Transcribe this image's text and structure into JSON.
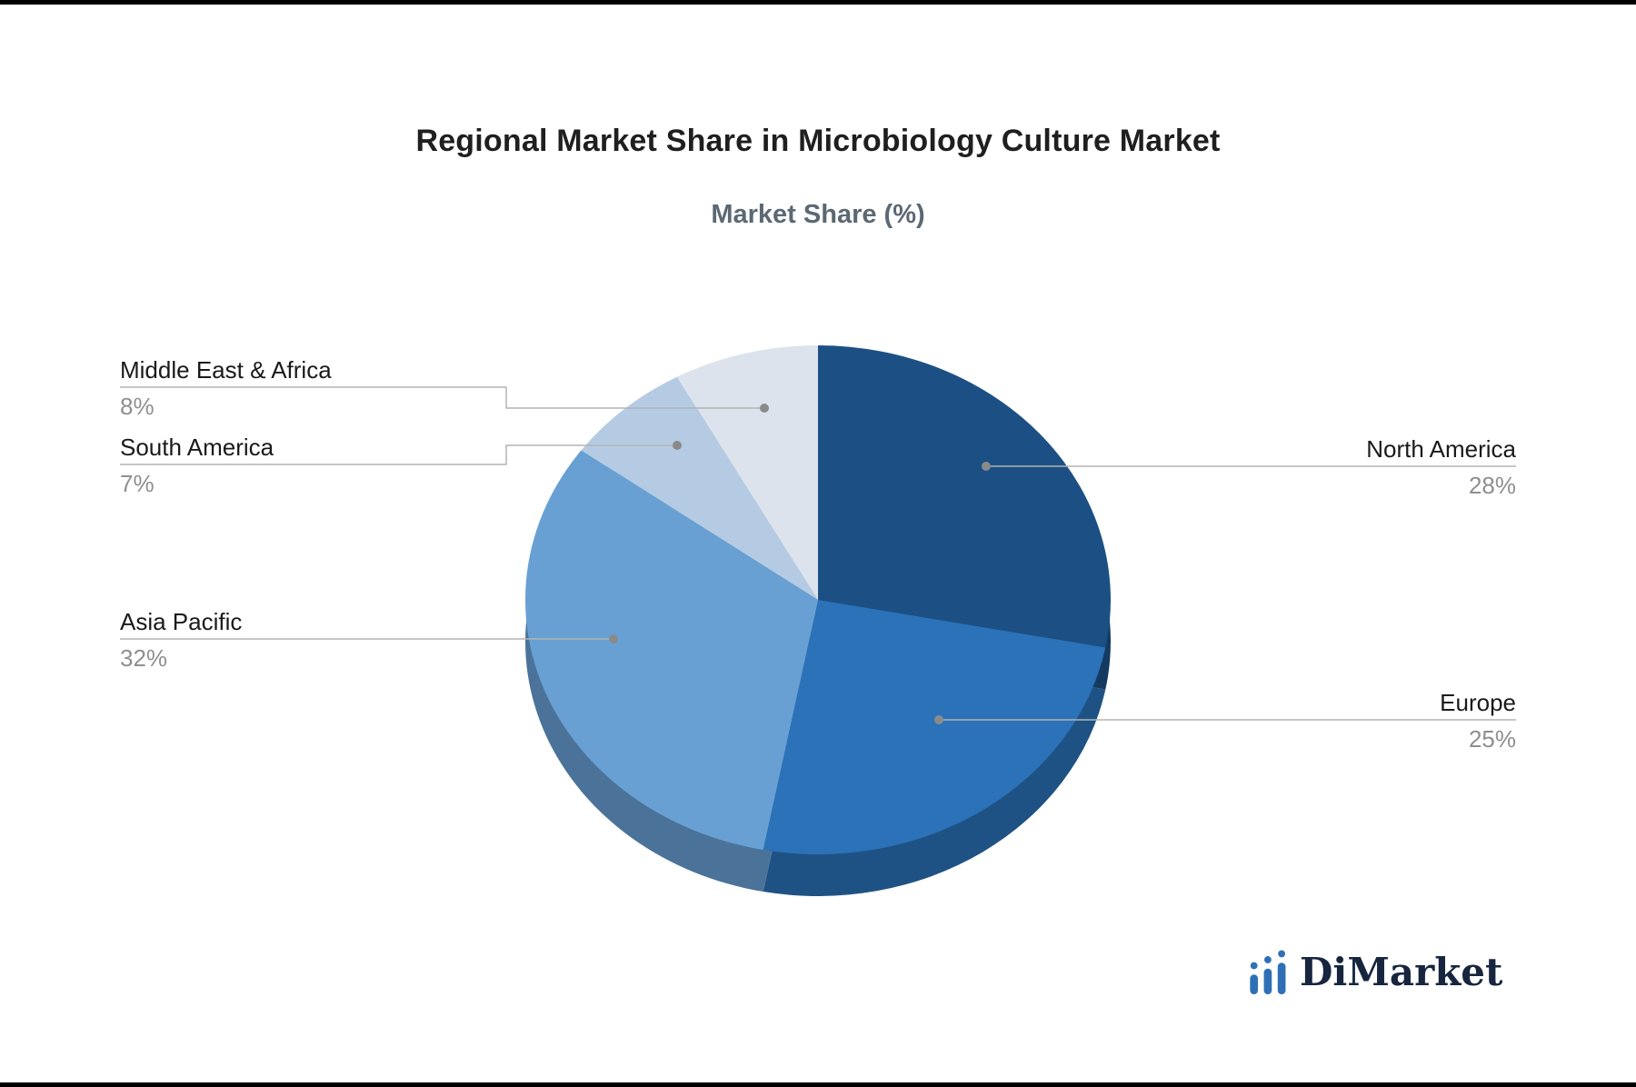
{
  "chart_data": {
    "type": "pie",
    "title": "Regional Market Share in Microbiology Culture Market",
    "subtitle": "Market Share (%)",
    "unit": "%",
    "legend_position": "none",
    "label_style": "callout-lines",
    "slices": [
      {
        "label": "North America",
        "value": 28,
        "pct": "28%",
        "color": "#1C5085"
      },
      {
        "label": "Europe",
        "value": 25,
        "pct": "25%",
        "color": "#2B72B8"
      },
      {
        "label": "Asia Pacific",
        "value": 32,
        "pct": "32%",
        "color": "#68A0D4"
      },
      {
        "label": "South America",
        "value": 7,
        "pct": "7%",
        "color": "#B4CBE3"
      },
      {
        "label": "Middle East & Africa",
        "value": 8,
        "pct": "8%",
        "color": "#DCE3EC"
      }
    ]
  },
  "branding": {
    "logo_text": "DiMarket",
    "logo_icon": "bar-chart-icon",
    "logo_color": "#2F6FB6",
    "logo_text_color": "#17263E"
  }
}
